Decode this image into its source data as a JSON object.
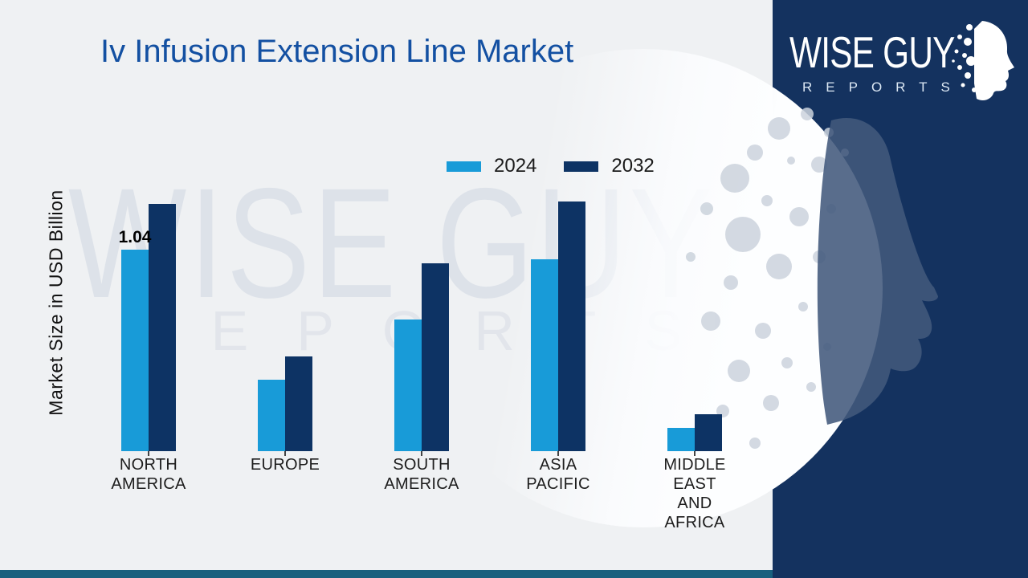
{
  "header": {
    "title": "Iv Infusion Extension Line Market"
  },
  "watermark": {
    "line1": "WISE GUY",
    "line2": "REPORTS"
  },
  "logo": {
    "line1": "WISE GUY",
    "line2": "REPORTS"
  },
  "legend": {
    "items": [
      {
        "label": "2024",
        "color": "#189bd8"
      },
      {
        "label": "2032",
        "color": "#0d3364"
      }
    ]
  },
  "chart_data": {
    "type": "bar",
    "title": "Iv Infusion Extension Line Market",
    "xlabel": "",
    "ylabel": "Market Size in USD Billion",
    "unit": "USD Billion",
    "categories": [
      "NORTH AMERICA",
      "EUROPE",
      "SOUTH AMERICA",
      "ASIA PACIFIC",
      "MIDDLE EAST AND AFRICA"
    ],
    "category_lines": [
      [
        "NORTH",
        "AMERICA"
      ],
      [
        "EUROPE"
      ],
      [
        "SOUTH",
        "AMERICA"
      ],
      [
        "ASIA",
        "PACIFIC"
      ],
      [
        "MIDDLE",
        "EAST",
        "AND",
        "AFRICA"
      ]
    ],
    "series": [
      {
        "name": "2024",
        "color": "#189bd8",
        "values": [
          1.04,
          0.37,
          0.68,
          0.99,
          0.12
        ]
      },
      {
        "name": "2032",
        "color": "#0d3364",
        "values": [
          1.28,
          0.49,
          0.97,
          1.29,
          0.19
        ]
      }
    ],
    "data_labels": [
      {
        "category_index": 0,
        "series_index": 0,
        "text": "1.04"
      }
    ],
    "ylim": [
      0,
      1.4
    ],
    "grid": false,
    "axes_visible": false,
    "legend_position": "top-center"
  },
  "colors": {
    "background": "#eff1f3",
    "panel_navy": "#14325f",
    "accent_teal_stripe": "#19607e",
    "title_blue": "#1350a2",
    "bar_2024": "#189bd8",
    "bar_2032": "#0d3364",
    "watermark_gray": "#dde2e9"
  }
}
